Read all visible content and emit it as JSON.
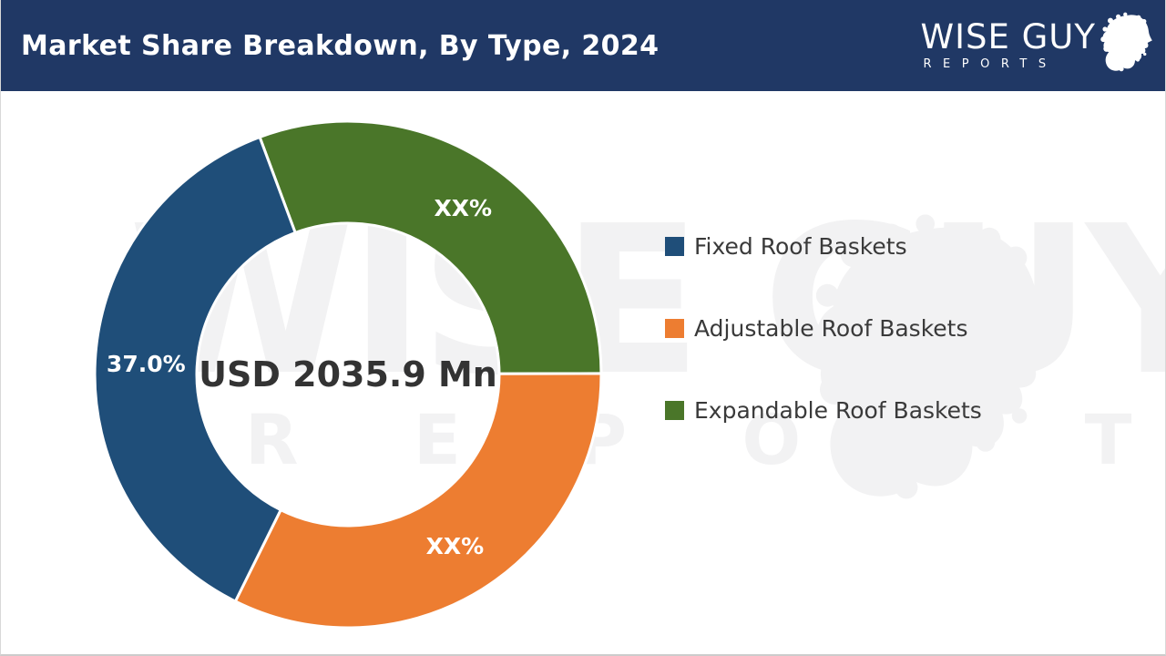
{
  "header": {
    "title": "Market Share Breakdown, By Type, 2024",
    "logo": {
      "name": "WISE GUY",
      "tagline": "REPORTS"
    }
  },
  "watermark": {
    "line1": "WISE GUY",
    "line2": "R E P O R T S"
  },
  "colors": {
    "header_bg": "#203865",
    "page_bg": "#ffffff",
    "watermark": "#f2f2f3",
    "center_text": "#333333",
    "legend_text": "#3a3a3a",
    "slice_label_text": "#ffffff",
    "slice_divider": "#ffffff"
  },
  "chart_data": {
    "type": "pie",
    "subtype": "donut",
    "title": "Market Share Breakdown, By Type, 2024",
    "center_label": "USD 2035.9 Mn",
    "legend_position": "right",
    "start_angle_deg": -20.4,
    "clockwise": true,
    "inner_radius_ratio": 0.6,
    "categories": [
      "Fixed Roof Baskets",
      "Adjustable Roof Baskets",
      "Expandable Roof Baskets"
    ],
    "series": [
      {
        "name": "Fixed Roof Baskets",
        "value": 37.0,
        "display_label": "37.0%",
        "color": "#1F4E79"
      },
      {
        "name": "Adjustable Roof Baskets",
        "value": 32.4,
        "display_label": "XX%",
        "color": "#ED7D31"
      },
      {
        "name": "Expandable Roof Baskets",
        "value": 30.6,
        "display_label": "XX%",
        "color": "#4A7629"
      }
    ],
    "draw_order": [
      2,
      1,
      0
    ]
  }
}
